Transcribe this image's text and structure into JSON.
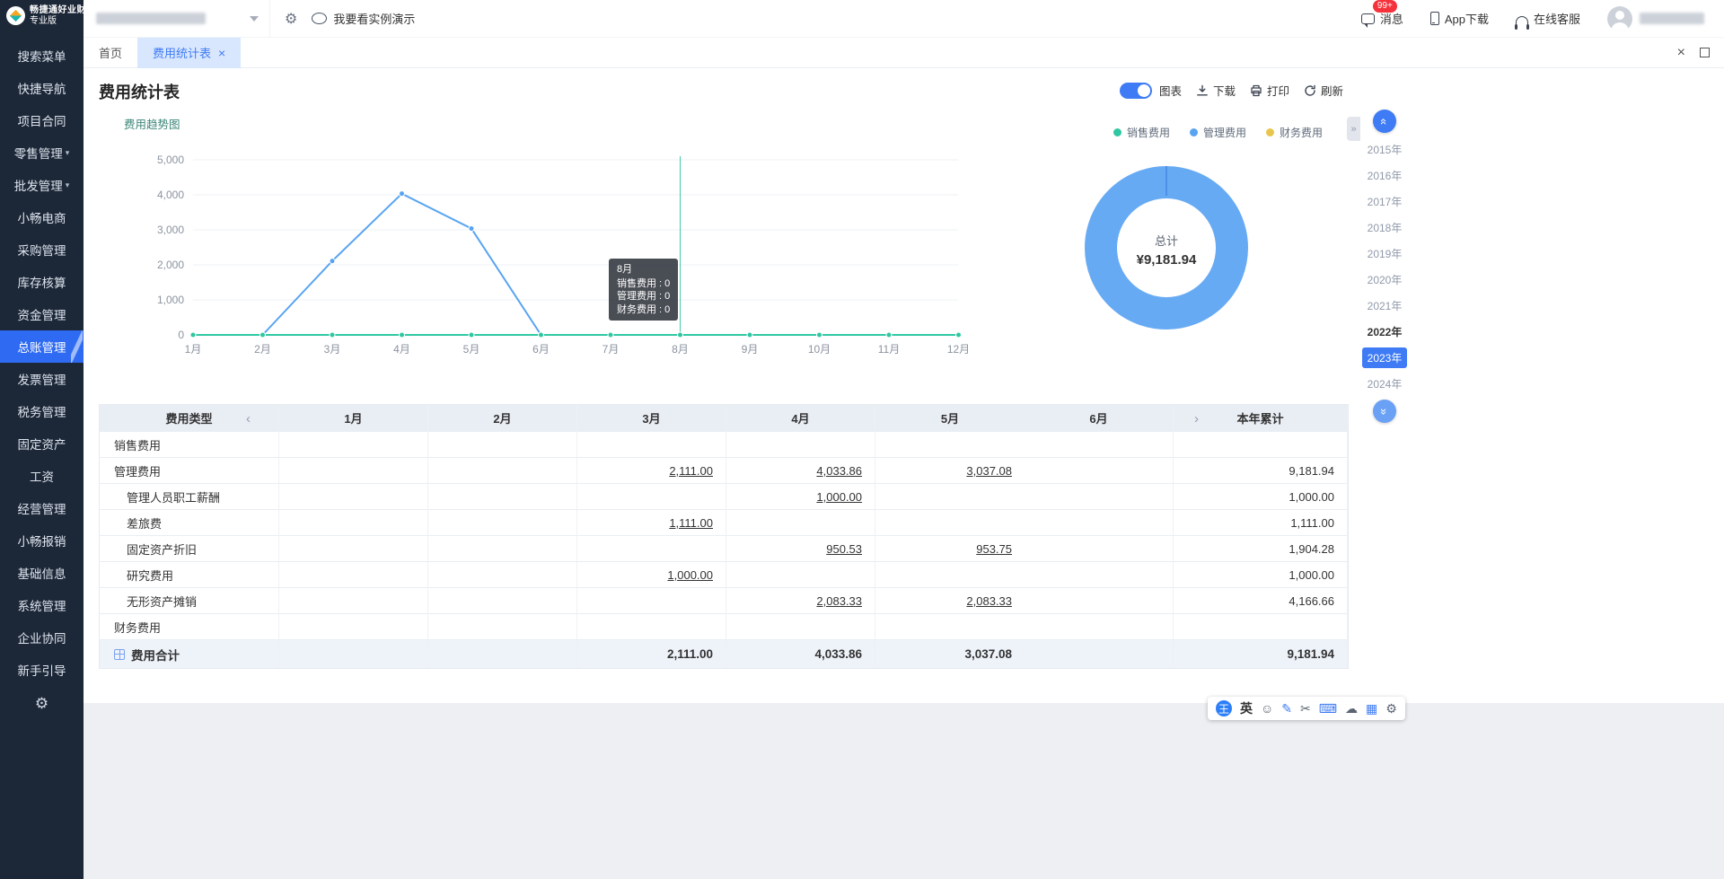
{
  "app": {
    "brand": "畅捷通好业财",
    "edition": "专业版"
  },
  "sidebar": {
    "items": [
      {
        "label": "搜索菜单"
      },
      {
        "label": "快捷导航"
      },
      {
        "label": "项目合同"
      },
      {
        "label": "零售管理",
        "arrow": true
      },
      {
        "label": "批发管理",
        "arrow": true
      },
      {
        "label": "小畅电商"
      },
      {
        "label": "采购管理"
      },
      {
        "label": "库存核算"
      },
      {
        "label": "资金管理"
      },
      {
        "label": "总账管理",
        "active": true
      },
      {
        "label": "发票管理"
      },
      {
        "label": "税务管理"
      },
      {
        "label": "固定资产"
      },
      {
        "label": "工资"
      },
      {
        "label": "经营管理"
      },
      {
        "label": "小畅报销"
      },
      {
        "label": "基础信息"
      },
      {
        "label": "系统管理"
      },
      {
        "label": "企业协同"
      },
      {
        "label": "新手引导"
      }
    ]
  },
  "topbar": {
    "demo_label": "我要看实例演示",
    "messages_label": "消息",
    "messages_badge": "99+",
    "app_download_label": "App下载",
    "online_service_label": "在线客服"
  },
  "tabs": {
    "home": "首页",
    "current": "费用统计表"
  },
  "page": {
    "title": "费用统计表",
    "view_toggle_label": "图表",
    "download_label": "下载",
    "print_label": "打印",
    "refresh_label": "刷新"
  },
  "chart_data": [
    {
      "type": "line",
      "title": "费用趋势图",
      "x": [
        "1月",
        "2月",
        "3月",
        "4月",
        "5月",
        "6月",
        "7月",
        "8月",
        "9月",
        "10月",
        "11月",
        "12月"
      ],
      "series": [
        {
          "name": "销售费用",
          "color": "#2fc7a2",
          "values": [
            0,
            0,
            0,
            0,
            0,
            0,
            0,
            0,
            0,
            0,
            0,
            0
          ]
        },
        {
          "name": "管理费用",
          "color": "#58a4f2",
          "values": [
            null,
            0,
            2111.0,
            4033.86,
            3037.08,
            0,
            0,
            0,
            0,
            0,
            0,
            0
          ]
        },
        {
          "name": "财务费用",
          "color": "#e8c64d",
          "values": [
            0,
            0,
            0,
            0,
            0,
            0,
            0,
            0,
            0,
            0,
            0,
            0
          ]
        }
      ],
      "ylim": [
        0,
        5000
      ],
      "yticks": [
        0,
        1000,
        2000,
        3000,
        4000,
        5000
      ],
      "grid": true,
      "legend_position": "top-right",
      "hover": {
        "index": 7,
        "title": "8月",
        "lines": [
          "销售费用 : 0",
          "管理费用 : 0",
          "财务费用 : 0"
        ],
        "line_color": "#45c9a5"
      }
    },
    {
      "type": "pie",
      "variant": "donut",
      "center_title": "总计",
      "center_value": "¥9,181.94",
      "slices": [
        {
          "name": "管理费用",
          "value": 9181.94,
          "color": "#67aaf4"
        }
      ]
    }
  ],
  "years": {
    "items": [
      {
        "label": "2015年"
      },
      {
        "label": "2016年"
      },
      {
        "label": "2017年"
      },
      {
        "label": "2018年"
      },
      {
        "label": "2019年"
      },
      {
        "label": "2020年"
      },
      {
        "label": "2021年"
      },
      {
        "label": "2022年",
        "emphasis": true
      },
      {
        "label": "2023年",
        "active": true
      },
      {
        "label": "2024年"
      }
    ]
  },
  "table": {
    "headers": [
      "费用类型",
      "1月",
      "2月",
      "3月",
      "4月",
      "5月",
      "6月",
      "本年累计"
    ],
    "rows": [
      {
        "label": "销售费用",
        "indent": 0,
        "months": [
          "",
          "",
          "",
          "",
          "",
          ""
        ],
        "links": [
          false,
          false,
          false,
          false,
          false,
          false
        ],
        "total": ""
      },
      {
        "label": "管理费用",
        "indent": 0,
        "months": [
          "",
          "",
          "2,111.00",
          "4,033.86",
          "3,037.08",
          ""
        ],
        "links": [
          false,
          false,
          true,
          true,
          true,
          false
        ],
        "total": "9,181.94"
      },
      {
        "label": "管理人员职工薪酬",
        "indent": 1,
        "months": [
          "",
          "",
          "",
          "1,000.00",
          "",
          ""
        ],
        "links": [
          false,
          false,
          false,
          true,
          false,
          false
        ],
        "total": "1,000.00"
      },
      {
        "label": "差旅费",
        "indent": 1,
        "months": [
          "",
          "",
          "1,111.00",
          "",
          "",
          ""
        ],
        "links": [
          false,
          false,
          true,
          false,
          false,
          false
        ],
        "total": "1,111.00"
      },
      {
        "label": "固定资产折旧",
        "indent": 1,
        "months": [
          "",
          "",
          "",
          "950.53",
          "953.75",
          ""
        ],
        "links": [
          false,
          false,
          false,
          true,
          true,
          false
        ],
        "total": "1,904.28"
      },
      {
        "label": "研究费用",
        "indent": 1,
        "months": [
          "",
          "",
          "1,000.00",
          "",
          "",
          ""
        ],
        "links": [
          false,
          false,
          true,
          false,
          false,
          false
        ],
        "total": "1,000.00"
      },
      {
        "label": "无形资产摊销",
        "indent": 1,
        "months": [
          "",
          "",
          "",
          "2,083.33",
          "2,083.33",
          ""
        ],
        "links": [
          false,
          false,
          false,
          true,
          true,
          false
        ],
        "total": "4,166.66"
      },
      {
        "label": "财务费用",
        "indent": 0,
        "months": [
          "",
          "",
          "",
          "",
          "",
          ""
        ],
        "links": [
          false,
          false,
          false,
          false,
          false,
          false
        ],
        "total": ""
      }
    ],
    "footer": {
      "label": "费用合计",
      "months": [
        "",
        "",
        "2,111.00",
        "4,033.86",
        "3,037.08",
        ""
      ],
      "total": "9,181.94"
    }
  },
  "ime": {
    "badge": "王",
    "mode": "英"
  }
}
